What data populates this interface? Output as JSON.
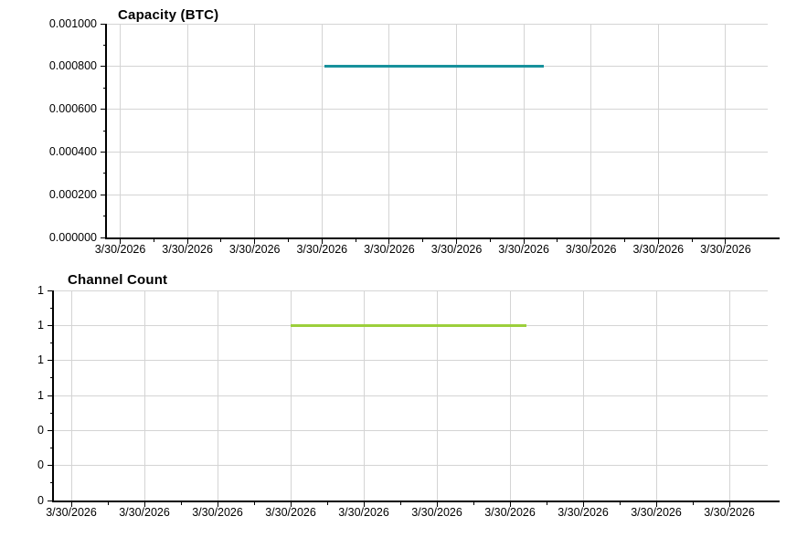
{
  "page": {
    "background": "#ffffff"
  },
  "style": {
    "grid_color": "#d4d4d4",
    "axis_color": "#000000",
    "text_color": "#000000",
    "title_color": "#000000"
  },
  "chart_data": [
    {
      "type": "line",
      "title": "Capacity (BTC)",
      "xlabel": "",
      "ylabel": "",
      "grid": true,
      "legend": "none",
      "ylim": [
        0,
        0.001
      ],
      "y_tick_values": [
        0.001,
        0.0008,
        0.0006,
        0.0004,
        0.0002,
        0
      ],
      "y_tick_labels": [
        "0.001000",
        "0.000800",
        "0.000600",
        "0.000400",
        "0.000200",
        "0.000000"
      ],
      "x_tick_labels": [
        "3/30/2026",
        "3/30/2026",
        "3/30/2026",
        "3/30/2026",
        "3/30/2026",
        "3/30/2026",
        "3/30/2026",
        "3/30/2026",
        "3/30/2026",
        "3/30/2026"
      ],
      "series": [
        {
          "name": "Capacity (BTC)",
          "color": "#17919C",
          "shape": "constant-horizontal-segment",
          "value": 0.0008,
          "x_start_fraction": 0.329,
          "x_end_fraction": 0.661
        }
      ]
    },
    {
      "type": "line",
      "title": "Channel Count",
      "xlabel": "",
      "ylabel": "",
      "grid": true,
      "legend": "none",
      "ylim": [
        0,
        1.2
      ],
      "y_tick_values": [
        1.2,
        1.0,
        0.8,
        0.6,
        0.4,
        0.2,
        0
      ],
      "y_tick_labels": [
        "1",
        "1",
        "1",
        "1",
        "0",
        "0",
        "0"
      ],
      "x_tick_labels": [
        "3/30/2026",
        "3/30/2026",
        "3/30/2026",
        "3/30/2026",
        "3/30/2026",
        "3/30/2026",
        "3/30/2026",
        "3/30/2026",
        "3/30/2026",
        "3/30/2026"
      ],
      "series": [
        {
          "name": "Channel Count",
          "color": "#9CCF3B",
          "shape": "constant-horizontal-segment",
          "value": 1,
          "x_start_fraction": 0.332,
          "x_end_fraction": 0.662
        }
      ]
    }
  ]
}
